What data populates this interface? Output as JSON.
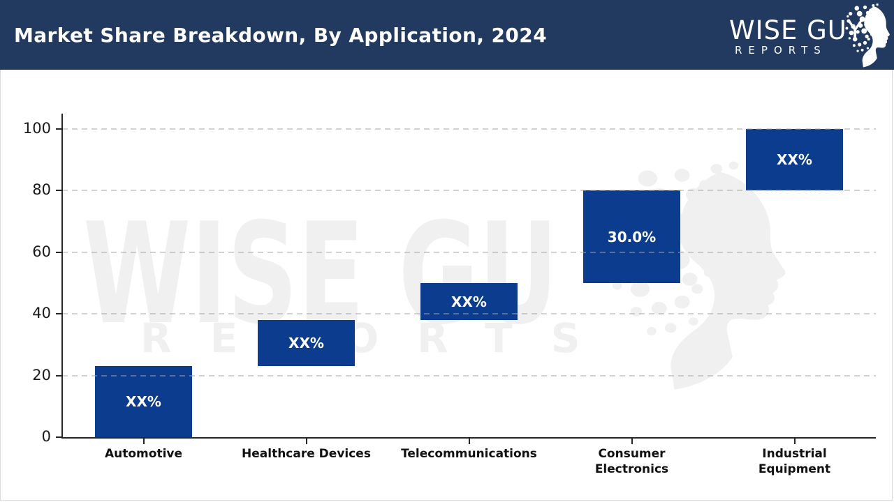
{
  "header": {
    "title": "Market Share Breakdown, By Application, 2024",
    "background": "#233a60",
    "brand": {
      "line1": "WISE GUY",
      "line2": "REPORTS"
    }
  },
  "watermark": {
    "line1": "WISE GU",
    "line2": "REPORTS",
    "color": "#f0f0f0"
  },
  "chart_data": {
    "type": "bar",
    "variant": "floating-segment-waterfall",
    "title": "Market Share Breakdown, By Application, 2024",
    "categories": [
      "Automotive",
      "Healthcare Devices",
      "Telecommunications",
      "Consumer Electronics",
      "Industrial Equipment"
    ],
    "category_label_lines": [
      [
        "Automotive"
      ],
      [
        "Healthcare Devices"
      ],
      [
        "Telecommunications"
      ],
      [
        "Consumer",
        "Electronics"
      ],
      [
        "Industrial",
        "Equipment"
      ]
    ],
    "series": [
      {
        "name": "Market share (%)",
        "segments": [
          {
            "category": "Automotive",
            "start": 0,
            "end": 23,
            "value": 23,
            "label": "XX%"
          },
          {
            "category": "Healthcare Devices",
            "start": 23,
            "end": 38,
            "value": 15,
            "label": "XX%"
          },
          {
            "category": "Telecommunications",
            "start": 38,
            "end": 50,
            "value": 12,
            "label": "XX%"
          },
          {
            "category": "Consumer Electronics",
            "start": 50,
            "end": 80,
            "value": 30,
            "label": "30.0%"
          },
          {
            "category": "Industrial Equipment",
            "start": 80,
            "end": 100,
            "value": 20,
            "label": "XX%"
          }
        ]
      }
    ],
    "ylim": [
      0,
      100
    ],
    "yticks": [
      0,
      20,
      40,
      60,
      80,
      100
    ],
    "xlabel": "",
    "ylabel": "",
    "grid": "horizontal-dashed",
    "legend": "none",
    "bar_color": "#0b3c8d",
    "axis_color": "#262626",
    "value_label_color": "#ffffff"
  }
}
